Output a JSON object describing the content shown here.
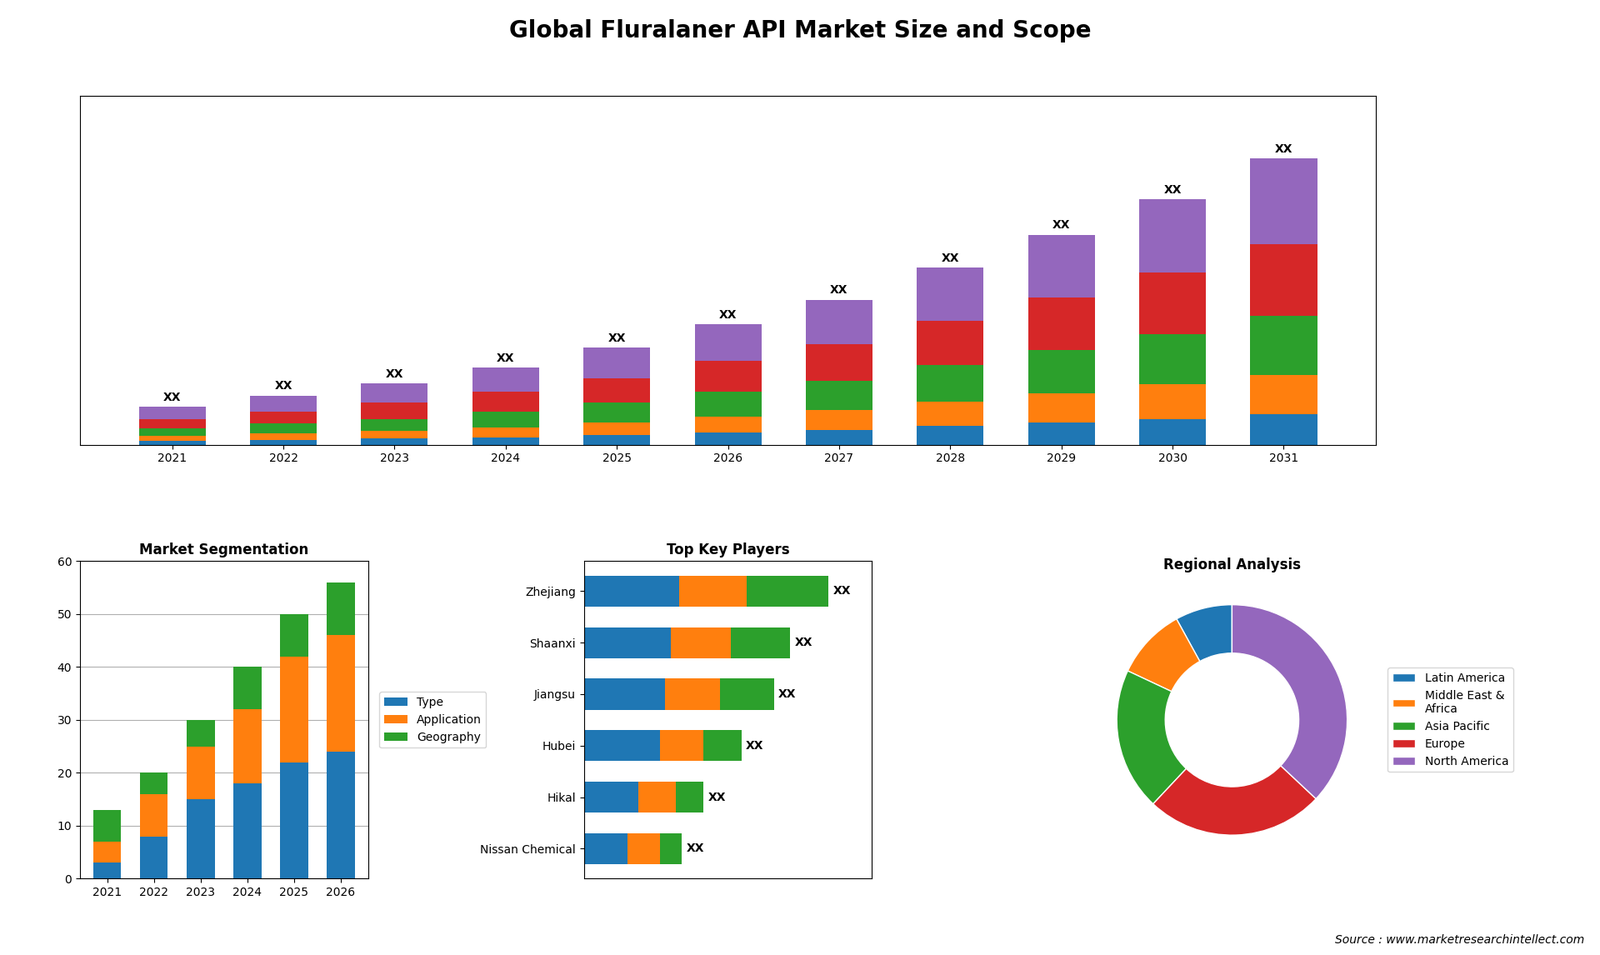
{
  "title": "Global Fluralaner API Market Size and Scope",
  "annotations": [
    "Source : www.marketresearchintellect.com"
  ],
  "chart_data": [
    {
      "type": "bar",
      "stacked": true,
      "categories": [
        "2021",
        "2022",
        "2023",
        "2024",
        "2025",
        "2026",
        "2027",
        "2028",
        "2029",
        "2030",
        "2031"
      ],
      "series": [
        {
          "values": [
            0.3,
            0.4,
            0.5,
            0.6,
            0.8,
            1.0,
            1.2,
            1.5,
            1.8,
            2.1,
            2.5
          ]
        },
        {
          "values": [
            0.4,
            0.5,
            0.6,
            0.8,
            1.0,
            1.3,
            1.6,
            2.0,
            2.4,
            2.8,
            3.2
          ]
        },
        {
          "values": [
            0.6,
            0.8,
            1.0,
            1.3,
            1.6,
            2.0,
            2.4,
            3.0,
            3.5,
            4.1,
            4.8
          ]
        },
        {
          "values": [
            0.8,
            1.0,
            1.3,
            1.6,
            2.0,
            2.5,
            3.0,
            3.6,
            4.3,
            5.0,
            5.8
          ]
        },
        {
          "values": [
            1.0,
            1.3,
            1.6,
            2.0,
            2.5,
            3.0,
            3.6,
            4.3,
            5.1,
            6.0,
            7.0
          ]
        }
      ],
      "stack_labels": [
        "XX",
        "XX",
        "XX",
        "XX",
        "XX",
        "XX",
        "XX",
        "XX",
        "XX",
        "XX",
        "XX"
      ],
      "ylim": [
        0,
        28.426
      ],
      "tick_labels": "x"
    },
    {
      "type": "bar",
      "title": "Market Segmentation",
      "stacked": true,
      "categories": [
        "2021",
        "2022",
        "2023",
        "2024",
        "2025",
        "2026"
      ],
      "series": [
        {
          "name": "Type",
          "values": [
            3,
            8,
            15,
            18,
            22,
            24
          ]
        },
        {
          "name": "Application",
          "values": [
            4,
            8,
            10,
            14,
            20,
            22
          ]
        },
        {
          "name": "Geography",
          "values": [
            6,
            4,
            5,
            8,
            8,
            10
          ]
        }
      ],
      "ylim": [
        0,
        60
      ],
      "yticks": [
        0,
        10,
        20,
        30,
        40,
        50,
        60
      ],
      "grid": true,
      "legend": "right"
    },
    {
      "type": "bar",
      "title": "Top Key Players",
      "orientation": "horizontal",
      "stacked": true,
      "categories": [
        "Zhejiang",
        "Shaanxi",
        "Jiangsu",
        "Hubei",
        "Hikal",
        "Nissan Chemical"
      ],
      "series": [
        {
          "values": [
            35,
            32,
            30,
            28,
            20,
            16
          ]
        },
        {
          "values": [
            25,
            22,
            20,
            16,
            14,
            12
          ]
        },
        {
          "values": [
            30,
            22,
            20,
            14,
            10,
            8
          ]
        }
      ],
      "stack_labels": [
        "XX",
        "XX",
        "XX",
        "XX",
        "XX",
        "XX"
      ],
      "xlim": [
        0,
        106.2
      ],
      "tick_labels": "y"
    },
    {
      "type": "pie",
      "title": "Regional Analysis",
      "categories": [
        "Latin America",
        "Middle East &\nAfrica",
        "Asia Pacific",
        "Europe",
        "North America"
      ],
      "values": [
        8,
        10,
        20,
        25,
        37
      ],
      "legend": "right"
    }
  ]
}
